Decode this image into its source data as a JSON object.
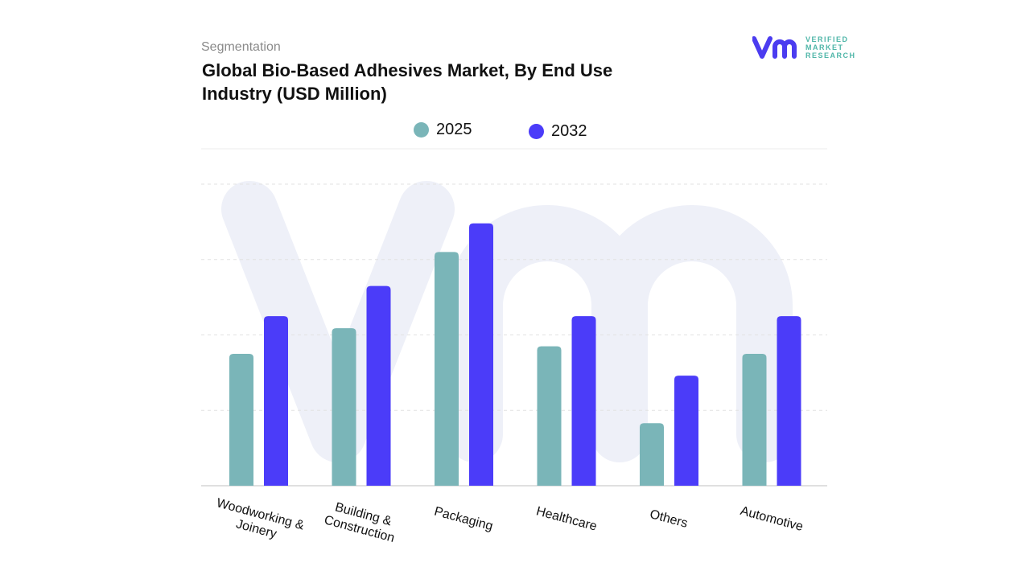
{
  "header": {
    "subtitle": "Segmentation",
    "title": "Global Bio-Based Adhesives Market, By End Use Industry (USD Million)"
  },
  "logo": {
    "text_lines": [
      "VERIFIED",
      "MARKET",
      "RESEARCH"
    ],
    "colors": {
      "mark": "#4b3cf0",
      "text": "#4fb6a8"
    }
  },
  "chart_data": {
    "type": "bar",
    "title": "Global Bio-Based Adhesives Market, By End Use Industry (USD Million)",
    "categories": [
      "Woodworking & Joinery",
      "Building & Construction",
      "Packaging",
      "Healthcare",
      "Others",
      "Automotive"
    ],
    "series": [
      {
        "name": "2025",
        "color": "#7ab5b8",
        "values": [
          1.75,
          2.09,
          3.1,
          1.85,
          0.83,
          1.75
        ]
      },
      {
        "name": "2032",
        "color": "#4b3cf9",
        "values": [
          2.25,
          2.65,
          3.48,
          2.25,
          1.46,
          2.25
        ]
      }
    ],
    "ylim": [
      0,
      4
    ],
    "grid": true,
    "y_tick_labels_shown": false,
    "legend_placement": "top-center",
    "xlabel": "",
    "ylabel": ""
  }
}
